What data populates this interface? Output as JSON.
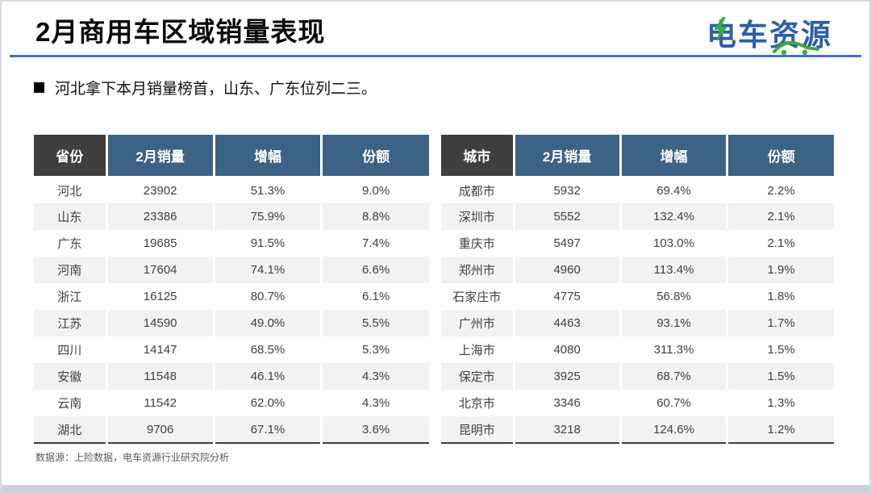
{
  "slide": {
    "title": "2月商用车区域销量表现",
    "subtitle": "河北拿下本月销量榜首，山东、广东位列二三。",
    "footer": "数据源：上险数据，电车资源行业研究院分析",
    "logo_text": "电车资源"
  },
  "colors": {
    "accent_rule": "#4472C4",
    "header_dark": "#3F3F3F",
    "header_blue": "#3D6384",
    "row_stripe": "#F2F2F2",
    "table_bottom_border": "#33404F",
    "logo_blue": "#2E5EA7",
    "logo_green": "#3BAA3F",
    "bottom_bar": "#C9D0DA"
  },
  "tables": {
    "province": {
      "headers": [
        "省份",
        "2月销量",
        "增幅",
        "份额"
      ],
      "rows": [
        [
          "河北",
          "23902",
          "51.3%",
          "9.0%"
        ],
        [
          "山东",
          "23386",
          "75.9%",
          "8.8%"
        ],
        [
          "广东",
          "19685",
          "91.5%",
          "7.4%"
        ],
        [
          "河南",
          "17604",
          "74.1%",
          "6.6%"
        ],
        [
          "浙江",
          "16125",
          "80.7%",
          "6.1%"
        ],
        [
          "江苏",
          "14590",
          "49.0%",
          "5.5%"
        ],
        [
          "四川",
          "14147",
          "68.5%",
          "5.3%"
        ],
        [
          "安徽",
          "11548",
          "46.1%",
          "4.3%"
        ],
        [
          "云南",
          "11542",
          "62.0%",
          "4.3%"
        ],
        [
          "湖北",
          "9706",
          "67.1%",
          "3.6%"
        ]
      ]
    },
    "city": {
      "headers": [
        "城市",
        "2月销量",
        "增幅",
        "份额"
      ],
      "rows": [
        [
          "成都市",
          "5932",
          "69.4%",
          "2.2%"
        ],
        [
          "深圳市",
          "5552",
          "132.4%",
          "2.1%"
        ],
        [
          "重庆市",
          "5497",
          "103.0%",
          "2.1%"
        ],
        [
          "郑州市",
          "4960",
          "113.4%",
          "1.9%"
        ],
        [
          "石家庄市",
          "4775",
          "56.8%",
          "1.8%"
        ],
        [
          "广州市",
          "4463",
          "93.1%",
          "1.7%"
        ],
        [
          "上海市",
          "4080",
          "311.3%",
          "1.5%"
        ],
        [
          "保定市",
          "3925",
          "68.7%",
          "1.5%"
        ],
        [
          "北京市",
          "3346",
          "60.7%",
          "1.3%"
        ],
        [
          "昆明市",
          "3218",
          "124.6%",
          "1.2%"
        ]
      ]
    }
  }
}
